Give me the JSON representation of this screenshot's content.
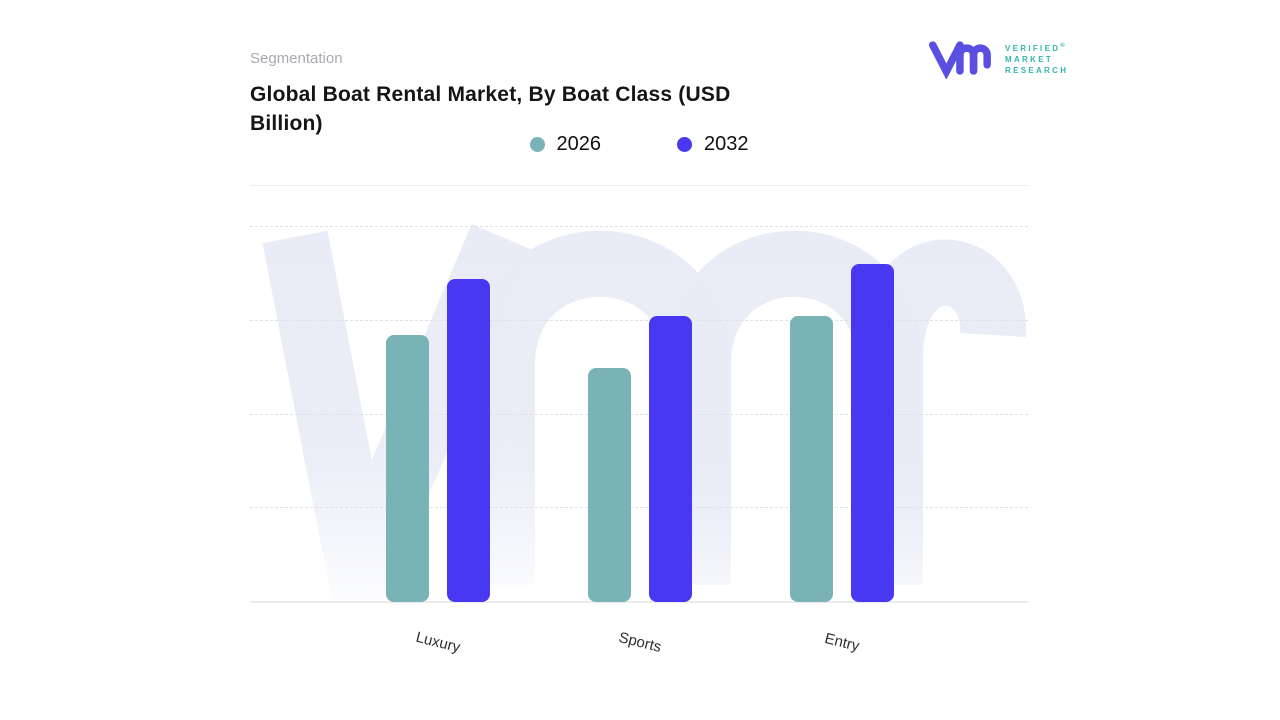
{
  "header": {
    "eyebrow": "Segmentation",
    "title": "Global Boat Rental Market, By Boat Class (USD Billion)"
  },
  "brand": {
    "monogram": "vmr",
    "monogram_color": "#5a4fe0",
    "name_lines": [
      "VERIFIED",
      "MARKET",
      "RESEARCH"
    ],
    "registered": "®",
    "name_color": "#33b6aa"
  },
  "chart_data": {
    "type": "bar",
    "title": "Global Boat Rental Market, By Boat Class (USD Billion)",
    "units": "USD Billion",
    "categories": [
      "Luxury",
      "Sports",
      "Entry"
    ],
    "series": [
      {
        "name": "2026",
        "color": "#79b3b5",
        "values": [
          2.85,
          2.5,
          3.05
        ]
      },
      {
        "name": "2032",
        "color": "#4838f2",
        "values": [
          3.45,
          3.05,
          3.6
        ]
      }
    ],
    "ylim": [
      0,
      4
    ],
    "yticks_shown": false,
    "grid": "horizontal-dashed",
    "legend_position": "top-center",
    "watermark": {
      "text": "vmr",
      "color": "#e9ecf6"
    }
  }
}
